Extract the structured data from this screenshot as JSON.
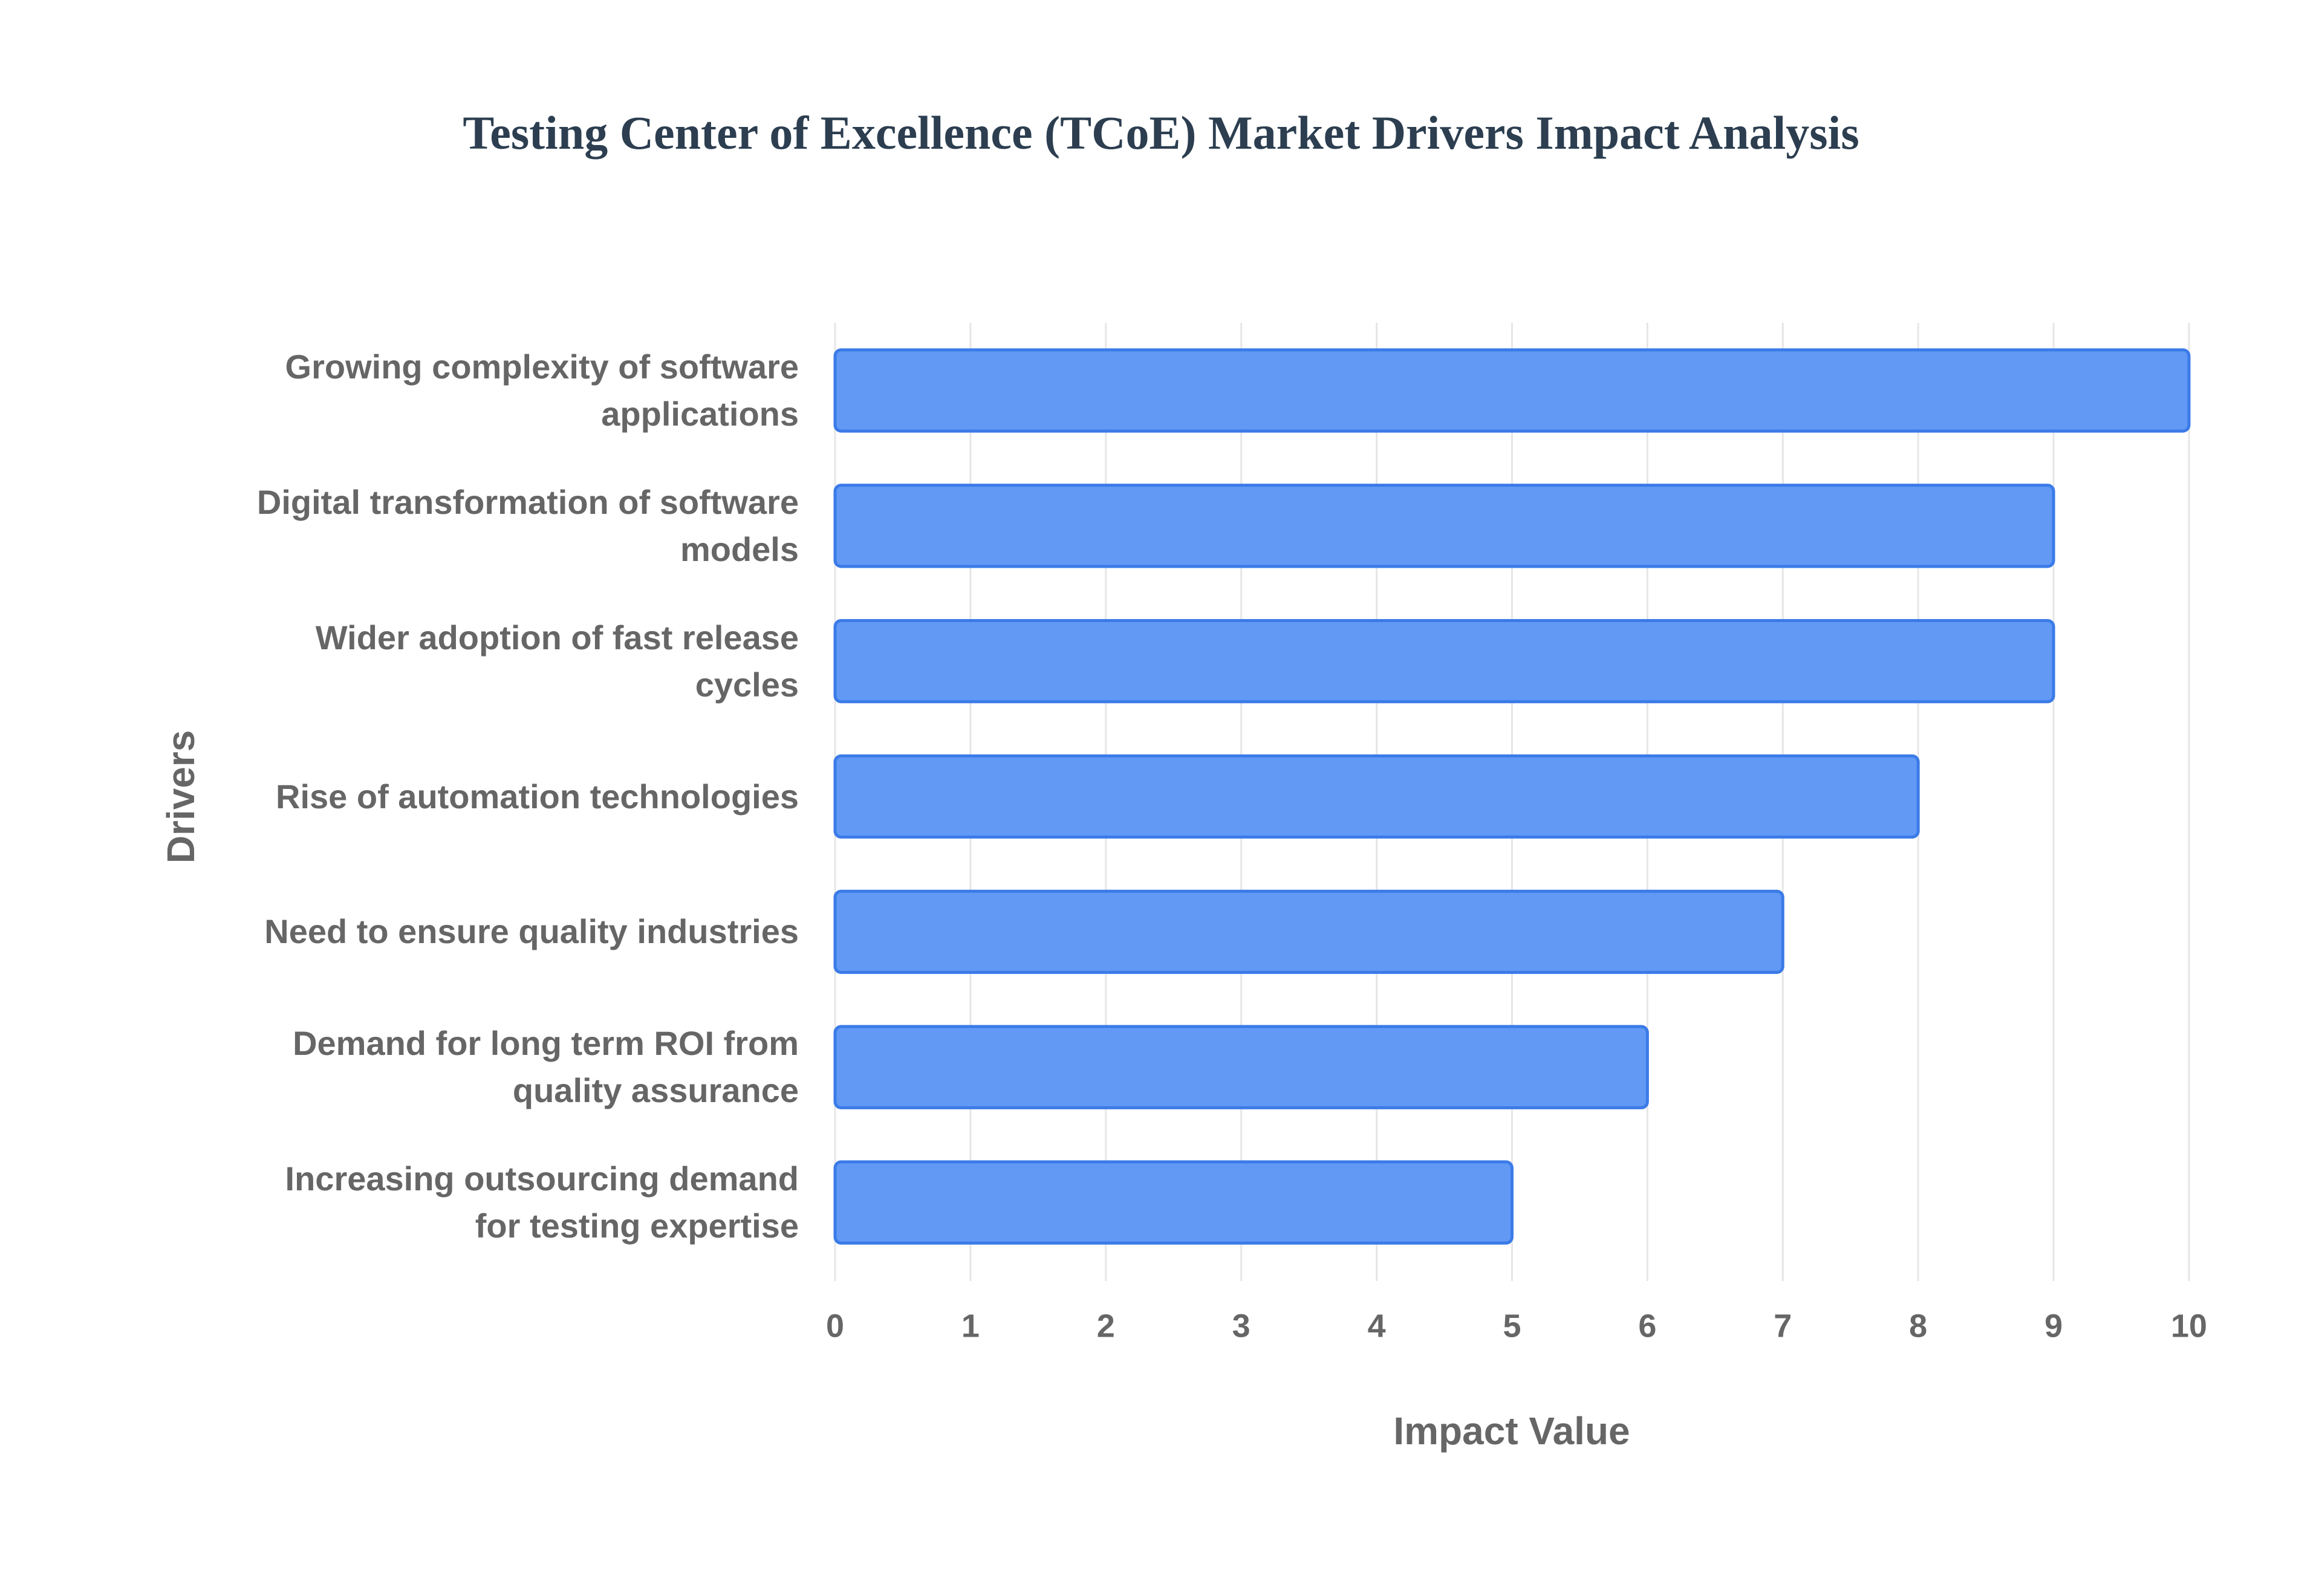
{
  "chart_data": {
    "type": "bar",
    "orientation": "horizontal",
    "title": "Testing Center of Excellence (TCoE) Market Drivers Impact Analysis",
    "xlabel": "Impact Value",
    "ylabel": "Drivers",
    "categories": [
      "Growing complexity of software applications",
      "Digital transformation of software models",
      "Wider adoption of fast release cycles",
      "Rise of automation technologies",
      "Need to ensure quality industries",
      "Demand for long term ROI from quality assurance",
      "Increasing outsourcing demand for testing expertise"
    ],
    "values": [
      10,
      9,
      9,
      8,
      7,
      6,
      5
    ],
    "color": "#6199f5",
    "border_color": "#3b7be8",
    "xlim": [
      0,
      10
    ],
    "xticks": [
      0,
      1,
      2,
      3,
      4,
      5,
      6,
      7,
      8,
      9,
      10
    ],
    "grid": true
  }
}
